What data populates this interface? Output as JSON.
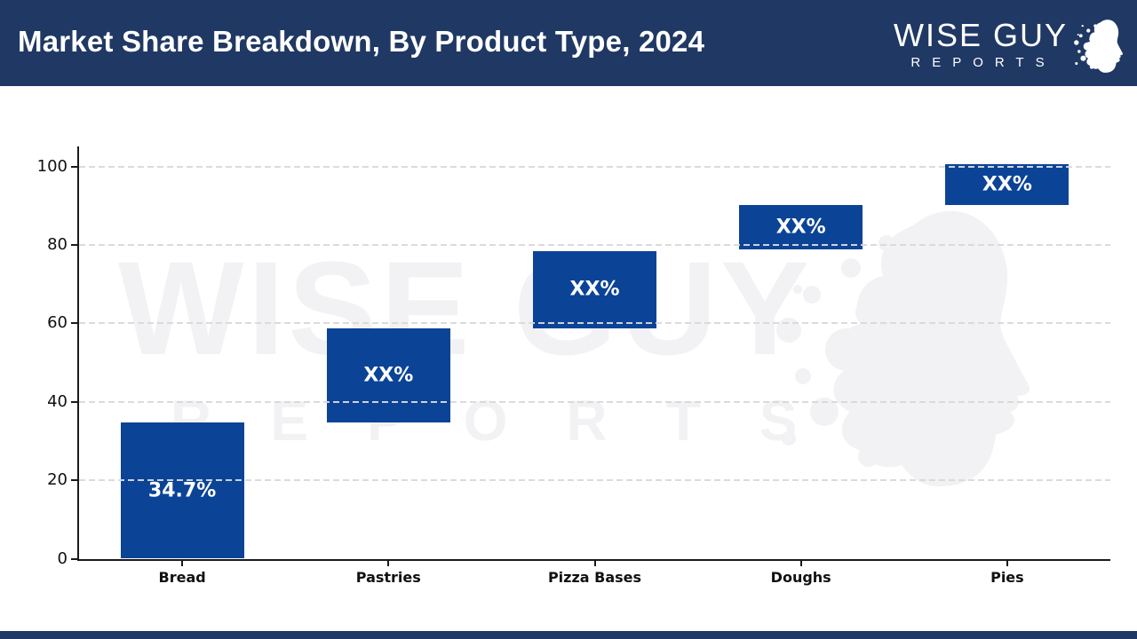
{
  "header": {
    "title": "Market Share Breakdown, By Product Type, 2024",
    "logo": {
      "brand": "WISE GUY",
      "sub": "REPORTS"
    }
  },
  "watermark": {
    "brand": "WISE GUY",
    "sub": "REPORTS"
  },
  "footer": {},
  "colors": {
    "header_bg": "#203864",
    "footer_bg": "#203864",
    "bar": "#0b4397",
    "bar_label": "#ffffff",
    "grid": "#d9d9d9",
    "axis": "#1a1a1a",
    "tick_label": "#111111",
    "watermark": "#f2f2f4"
  },
  "chart_data": {
    "type": "bar",
    "subtype": "waterfall",
    "title": "Market Share Breakdown, By Product Type, 2024",
    "xlabel": "",
    "ylabel": "",
    "categories": [
      "Bread",
      "Pastries",
      "Pizza Bases",
      "Doughs",
      "Pies"
    ],
    "segments": [
      {
        "category": "Bread",
        "start": 0,
        "end": 34.7,
        "label": "34.7%"
      },
      {
        "category": "Pastries",
        "start": 34.8,
        "end": 58.6,
        "label": "XX%"
      },
      {
        "category": "Pizza Bases",
        "start": 58.8,
        "end": 78.4,
        "label": "XX%"
      },
      {
        "category": "Doughs",
        "start": 78.8,
        "end": 90.1,
        "label": "XX%"
      },
      {
        "category": "Pies",
        "start": 90.1,
        "end": 100.5,
        "label": "XX%"
      }
    ],
    "yticks": [
      0,
      20,
      40,
      60,
      80,
      100
    ],
    "ylim": [
      0,
      105
    ],
    "grid": "horizontal-dashed",
    "legend": "none",
    "bar_color": "#0b4397",
    "bar_label_color": "#ffffff"
  }
}
